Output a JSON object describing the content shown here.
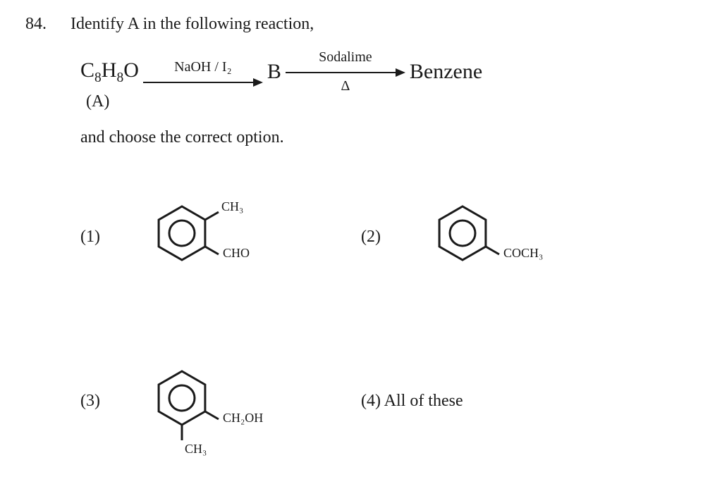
{
  "question": {
    "number": "84.",
    "stem": "Identify A in the following reaction,",
    "choose": "and choose the correct option."
  },
  "reaction": {
    "start": {
      "formula_html": "C<sub>8</sub>H<sub>8</sub>O",
      "caption": "(A)"
    },
    "step1": {
      "top": "NaOH / I₂",
      "bottom": ""
    },
    "mid": "B",
    "step2": {
      "top": "Sodalime",
      "bottom": "Δ"
    },
    "end": "Benzene"
  },
  "arrows": {
    "len1": 170,
    "len2": 170,
    "stroke": "#1a1a1a",
    "stroke_width": 2
  },
  "benzene": {
    "outer_r": 38,
    "inner_r": 18,
    "stroke": "#1a1a1a",
    "stroke_width": 3
  },
  "options": {
    "1": {
      "label": "(1)",
      "sub_top": "CH₃",
      "sub_side": "CHO"
    },
    "2": {
      "label": "(2)",
      "sub_side": "COCH₃"
    },
    "3": {
      "label": "(3)",
      "sub_side": "CH₂OH",
      "sub_bot": "CH₃"
    },
    "4": {
      "label": "(4) All of these"
    }
  }
}
